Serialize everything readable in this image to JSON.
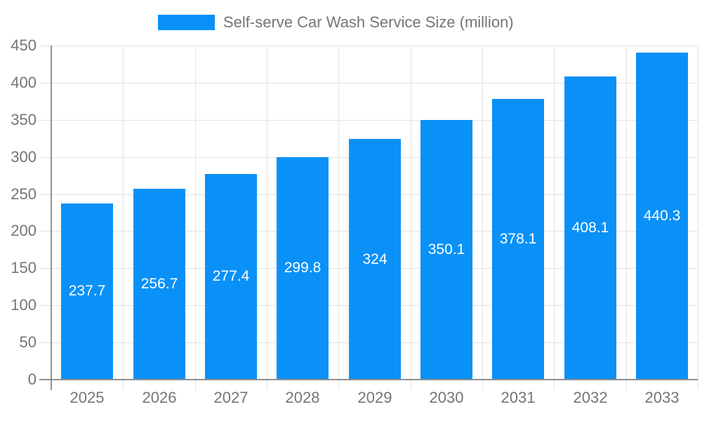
{
  "legend": {
    "label": "Self-serve Car Wash Service Size (million)"
  },
  "colors": {
    "bar": "#0a91f7",
    "axis_text": "#757575",
    "grid_line": "#e2e2e2",
    "axis_line": "#8f8f8f",
    "bar_label_text": "#ffffff",
    "background": "#ffffff"
  },
  "chart_data": {
    "type": "bar",
    "title": "Self-serve Car Wash Service Size (million)",
    "series": [
      {
        "name": "Self-serve Car Wash Service Size (million)",
        "values": [
          237.7,
          256.7,
          277.4,
          299.8,
          324,
          350.1,
          378.1,
          408.1,
          440.3
        ]
      }
    ],
    "categories": [
      "2025",
      "2026",
      "2027",
      "2028",
      "2029",
      "2030",
      "2031",
      "2032",
      "2033"
    ],
    "xlabel": "",
    "ylabel": "",
    "ylim": [
      0,
      450
    ],
    "ytick_step": 50,
    "ytick_labels": [
      "0",
      "50",
      "100",
      "150",
      "200",
      "250",
      "300",
      "350",
      "400",
      "450"
    ],
    "grid": true,
    "legend_position": "top",
    "bar_value_labels": [
      "237.7",
      "256.7",
      "277.4",
      "299.8",
      "324",
      "350.1",
      "378.1",
      "408.1",
      "440.3"
    ]
  }
}
